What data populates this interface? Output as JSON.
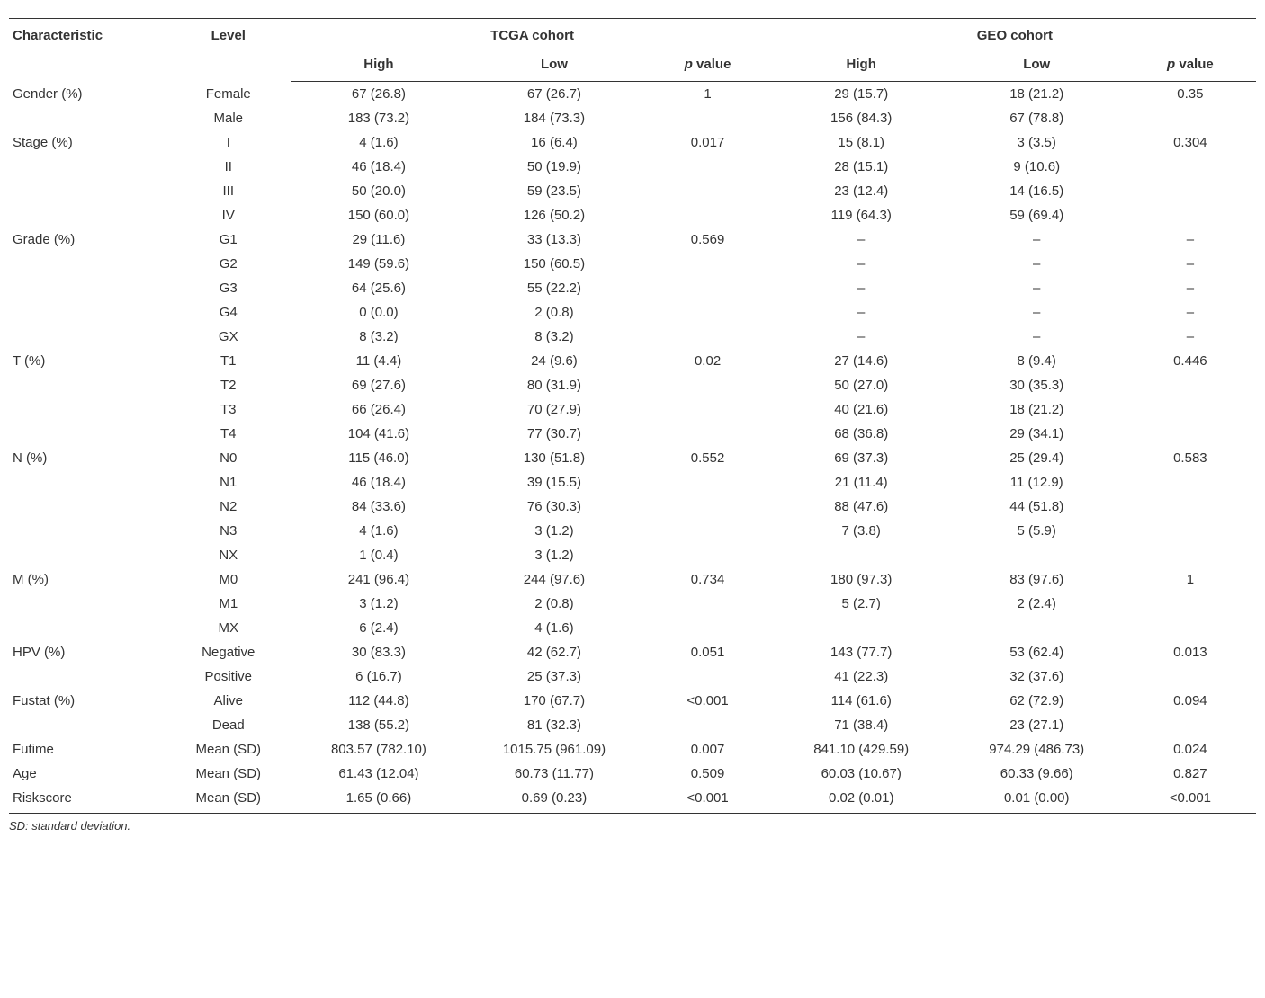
{
  "headers": {
    "characteristic": "Characteristic",
    "level": "Level",
    "cohort1": "TCGA cohort",
    "cohort2": "GEO cohort",
    "high": "High",
    "low": "Low",
    "p_value_prefix": "p",
    "p_value_suffix": " value"
  },
  "rows": [
    {
      "char": "Gender (%)",
      "level": "Female",
      "c1h": "67 (26.8)",
      "c1l": "67 (26.7)",
      "c1p": "1",
      "c2h": "29 (15.7)",
      "c2l": "18 (21.2)",
      "c2p": "0.35"
    },
    {
      "char": "",
      "level": "Male",
      "c1h": "183 (73.2)",
      "c1l": "184 (73.3)",
      "c1p": "",
      "c2h": "156 (84.3)",
      "c2l": "67 (78.8)",
      "c2p": ""
    },
    {
      "char": "Stage (%)",
      "level": "I",
      "c1h": "4 (1.6)",
      "c1l": "16 (6.4)",
      "c1p": "0.017",
      "c2h": "15 (8.1)",
      "c2l": "3 (3.5)",
      "c2p": "0.304"
    },
    {
      "char": "",
      "level": "II",
      "c1h": "46 (18.4)",
      "c1l": "50 (19.9)",
      "c1p": "",
      "c2h": "28 (15.1)",
      "c2l": "9 (10.6)",
      "c2p": ""
    },
    {
      "char": "",
      "level": "III",
      "c1h": "50 (20.0)",
      "c1l": "59 (23.5)",
      "c1p": "",
      "c2h": "23 (12.4)",
      "c2l": "14 (16.5)",
      "c2p": ""
    },
    {
      "char": "",
      "level": "IV",
      "c1h": "150 (60.0)",
      "c1l": "126 (50.2)",
      "c1p": "",
      "c2h": "119 (64.3)",
      "c2l": "59 (69.4)",
      "c2p": ""
    },
    {
      "char": "Grade (%)",
      "level": "G1",
      "c1h": "29 (11.6)",
      "c1l": "33 (13.3)",
      "c1p": "0.569",
      "c2h": "–",
      "c2l": "–",
      "c2p": "–"
    },
    {
      "char": "",
      "level": "G2",
      "c1h": "149 (59.6)",
      "c1l": "150 (60.5)",
      "c1p": "",
      "c2h": "–",
      "c2l": "–",
      "c2p": "–"
    },
    {
      "char": "",
      "level": "G3",
      "c1h": "64 (25.6)",
      "c1l": "55 (22.2)",
      "c1p": "",
      "c2h": "–",
      "c2l": "–",
      "c2p": "–"
    },
    {
      "char": "",
      "level": "G4",
      "c1h": "0 (0.0)",
      "c1l": "2 (0.8)",
      "c1p": "",
      "c2h": "–",
      "c2l": "–",
      "c2p": "–"
    },
    {
      "char": "",
      "level": "GX",
      "c1h": "8 (3.2)",
      "c1l": "8 (3.2)",
      "c1p": "",
      "c2h": "–",
      "c2l": "–",
      "c2p": "–"
    },
    {
      "char": "T (%)",
      "level": "T1",
      "c1h": "11 (4.4)",
      "c1l": "24 (9.6)",
      "c1p": "0.02",
      "c2h": "27 (14.6)",
      "c2l": "8 (9.4)",
      "c2p": "0.446"
    },
    {
      "char": "",
      "level": "T2",
      "c1h": "69 (27.6)",
      "c1l": "80 (31.9)",
      "c1p": "",
      "c2h": "50 (27.0)",
      "c2l": "30 (35.3)",
      "c2p": ""
    },
    {
      "char": "",
      "level": "T3",
      "c1h": "66 (26.4)",
      "c1l": "70 (27.9)",
      "c1p": "",
      "c2h": "40 (21.6)",
      "c2l": "18 (21.2)",
      "c2p": ""
    },
    {
      "char": "",
      "level": "T4",
      "c1h": "104 (41.6)",
      "c1l": "77 (30.7)",
      "c1p": "",
      "c2h": "68 (36.8)",
      "c2l": "29 (34.1)",
      "c2p": ""
    },
    {
      "char": "N (%)",
      "level": "N0",
      "c1h": "115 (46.0)",
      "c1l": "130 (51.8)",
      "c1p": "0.552",
      "c2h": "69 (37.3)",
      "c2l": "25 (29.4)",
      "c2p": "0.583"
    },
    {
      "char": "",
      "level": "N1",
      "c1h": "46 (18.4)",
      "c1l": "39 (15.5)",
      "c1p": "",
      "c2h": "21 (11.4)",
      "c2l": "11 (12.9)",
      "c2p": ""
    },
    {
      "char": "",
      "level": "N2",
      "c1h": "84 (33.6)",
      "c1l": "76 (30.3)",
      "c1p": "",
      "c2h": "88 (47.6)",
      "c2l": "44 (51.8)",
      "c2p": ""
    },
    {
      "char": "",
      "level": "N3",
      "c1h": "4 (1.6)",
      "c1l": "3 (1.2)",
      "c1p": "",
      "c2h": "7 (3.8)",
      "c2l": "5 (5.9)",
      "c2p": ""
    },
    {
      "char": "",
      "level": "NX",
      "c1h": "1 (0.4)",
      "c1l": "3 (1.2)",
      "c1p": "",
      "c2h": "",
      "c2l": "",
      "c2p": ""
    },
    {
      "char": "M (%)",
      "level": "M0",
      "c1h": "241 (96.4)",
      "c1l": "244 (97.6)",
      "c1p": "0.734",
      "c2h": "180 (97.3)",
      "c2l": "83 (97.6)",
      "c2p": "1"
    },
    {
      "char": "",
      "level": "M1",
      "c1h": "3 (1.2)",
      "c1l": "2 (0.8)",
      "c1p": "",
      "c2h": "5 (2.7)",
      "c2l": "2 (2.4)",
      "c2p": ""
    },
    {
      "char": "",
      "level": "MX",
      "c1h": "6 (2.4)",
      "c1l": "4 (1.6)",
      "c1p": "",
      "c2h": "",
      "c2l": "",
      "c2p": ""
    },
    {
      "char": "HPV (%)",
      "level": "Negative",
      "c1h": "30 (83.3)",
      "c1l": "42 (62.7)",
      "c1p": "0.051",
      "c2h": "143 (77.7)",
      "c2l": "53 (62.4)",
      "c2p": "0.013"
    },
    {
      "char": "",
      "level": "Positive",
      "c1h": "6 (16.7)",
      "c1l": "25 (37.3)",
      "c1p": "",
      "c2h": "41 (22.3)",
      "c2l": "32 (37.6)",
      "c2p": ""
    },
    {
      "char": "Fustat (%)",
      "level": "Alive",
      "c1h": "112 (44.8)",
      "c1l": "170 (67.7)",
      "c1p": "<0.001",
      "c2h": "114 (61.6)",
      "c2l": "62 (72.9)",
      "c2p": "0.094"
    },
    {
      "char": "",
      "level": "Dead",
      "c1h": "138 (55.2)",
      "c1l": "81 (32.3)",
      "c1p": "",
      "c2h": "71 (38.4)",
      "c2l": "23 (27.1)",
      "c2p": ""
    },
    {
      "char": "Futime",
      "level": "Mean (SD)",
      "c1h": "803.57 (782.10)",
      "c1l": "1015.75 (961.09)",
      "c1p": "0.007",
      "c2h": "841.10 (429.59)",
      "c2l": "974.29 (486.73)",
      "c2p": "0.024"
    },
    {
      "char": "Age",
      "level": "Mean (SD)",
      "c1h": "61.43 (12.04)",
      "c1l": "60.73 (11.77)",
      "c1p": "0.509",
      "c2h": "60.03 (10.67)",
      "c2l": "60.33 (9.66)",
      "c2p": "0.827"
    },
    {
      "char": "Riskscore",
      "level": "Mean (SD)",
      "c1h": "1.65 (0.66)",
      "c1l": "0.69 (0.23)",
      "c1p": "<0.001",
      "c2h": "0.02 (0.01)",
      "c2l": "0.01 (0.00)",
      "c2p": "<0.001"
    }
  ],
  "footnote": "SD: standard deviation.",
  "style": {
    "font_family": "Arial, Helvetica, sans-serif",
    "font_size_pt": 11,
    "header_font_weight": "bold",
    "text_color": "#333333",
    "background_color": "#ffffff",
    "rule_color": "#333333",
    "footnote_font_size_pt": 10,
    "col_widths_pct": [
      12.5,
      10,
      14,
      14,
      10.5,
      14,
      14,
      10.5
    ]
  }
}
